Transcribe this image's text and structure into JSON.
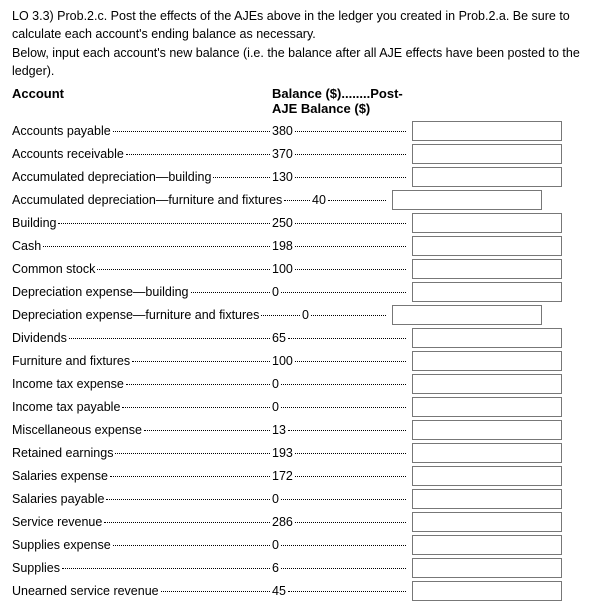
{
  "intro": {
    "line1": "LO 3.3) Prob.2.c. Post the effects of the AJEs above in the ledger you created in Prob.2.a.  Be sure to calculate each account's ending balance as necessary.",
    "line2": "Below, input each account's new balance (i.e. the balance after all AJE effects have been posted to the ledger)."
  },
  "headers": {
    "account": "Account",
    "balance": "Balance ($)........Post-AJE Balance ($)"
  },
  "rows": [
    {
      "label": "Accounts payable",
      "balance": "380",
      "labelW": 260,
      "balW": 140
    },
    {
      "label": "Accounts receivable",
      "balance": "370",
      "labelW": 260,
      "balW": 140
    },
    {
      "label": "Accumulated depreciation—building",
      "balance": "130",
      "labelW": 260,
      "balW": 140
    },
    {
      "label": "Accumulated depreciation—furniture and fixtures",
      "balance": "40",
      "labelW": 300,
      "balW": 80
    },
    {
      "label": "Building",
      "balance": "250",
      "labelW": 260,
      "balW": 140
    },
    {
      "label": "Cash",
      "balance": "198",
      "labelW": 260,
      "balW": 140
    },
    {
      "label": "Common stock",
      "balance": "100",
      "labelW": 260,
      "balW": 140
    },
    {
      "label": "Depreciation expense—building",
      "balance": "0",
      "labelW": 260,
      "balW": 140
    },
    {
      "label": "Depreciation expense—furniture and fixtures",
      "balance": "0",
      "labelW": 290,
      "balW": 90
    },
    {
      "label": "Dividends",
      "balance": "65",
      "labelW": 260,
      "balW": 140
    },
    {
      "label": "Furniture and fixtures",
      "balance": "100",
      "labelW": 260,
      "balW": 140
    },
    {
      "label": "Income tax expense",
      "balance": "0",
      "labelW": 260,
      "balW": 140
    },
    {
      "label": "Income tax payable",
      "balance": "0",
      "labelW": 260,
      "balW": 140
    },
    {
      "label": "Miscellaneous expense",
      "balance": "13",
      "labelW": 260,
      "balW": 140
    },
    {
      "label": "Retained earnings",
      "balance": "193",
      "labelW": 260,
      "balW": 140
    },
    {
      "label": "Salaries expense",
      "balance": "172",
      "labelW": 260,
      "balW": 140
    },
    {
      "label": "Salaries payable",
      "balance": "0",
      "labelW": 260,
      "balW": 140
    },
    {
      "label": "Service revenue",
      "balance": "286",
      "labelW": 260,
      "balW": 140
    },
    {
      "label": "Supplies expense",
      "balance": "0",
      "labelW": 260,
      "balW": 140
    },
    {
      "label": "Supplies",
      "balance": "6",
      "labelW": 260,
      "balW": 140
    },
    {
      "label": "Unearned service revenue",
      "balance": "45",
      "labelW": 260,
      "balW": 140
    }
  ]
}
